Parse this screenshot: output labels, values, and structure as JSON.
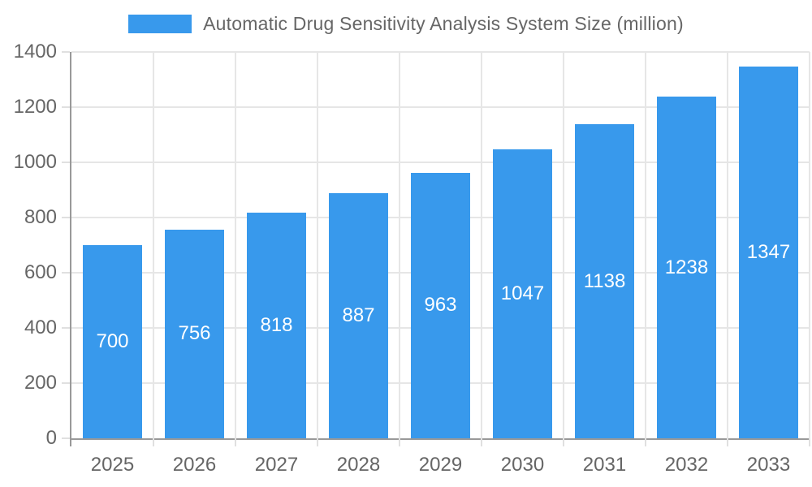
{
  "legend": {
    "label": "Automatic Drug Sensitivity Analysis System Size (million)"
  },
  "colors": {
    "bar": "#3899EC",
    "grid": "#E6E6E6",
    "axis": "#999999",
    "tick_text": "#666666",
    "value_text": "#FFFFFF"
  },
  "chart_data": {
    "type": "bar",
    "title": "Automatic Drug Sensitivity Analysis System Size (million)",
    "categories": [
      "2025",
      "2026",
      "2027",
      "2028",
      "2029",
      "2030",
      "2031",
      "2032",
      "2033"
    ],
    "values": [
      700,
      756,
      818,
      887,
      963,
      1047,
      1138,
      1238,
      1347
    ],
    "xlabel": "",
    "ylabel": "",
    "ylim": [
      0,
      1400
    ],
    "yticks": [
      0,
      200,
      400,
      600,
      800,
      1000,
      1200,
      1400
    ],
    "grid": true,
    "legend_position": "top",
    "value_labels": "centered-inside-bars"
  }
}
